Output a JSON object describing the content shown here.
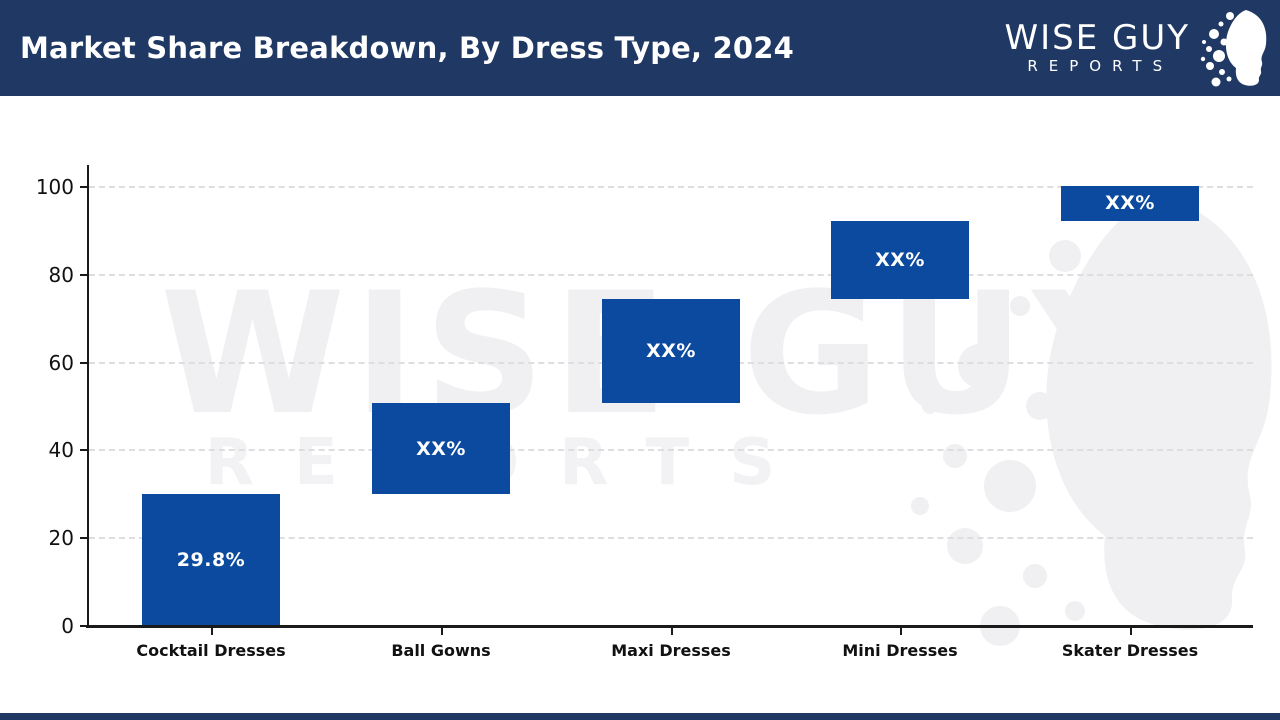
{
  "header": {
    "title": "Market Share Breakdown, By Dress Type, 2024",
    "bg_color": "#1f3864",
    "logo": {
      "line1": "WISE GUY",
      "line2": "REPORTS"
    }
  },
  "watermark": {
    "line1": "WISE GUY",
    "line2": "REPORTS"
  },
  "chart_data": {
    "type": "bar",
    "subtype": "waterfall",
    "title": "Market Share Breakdown, By Dress Type, 2024",
    "categories": [
      "Cocktail Dresses",
      "Ball Gowns",
      "Maxi Dresses",
      "Mini Dresses",
      "Skater Dresses"
    ],
    "bars": [
      {
        "category": "Cocktail Dresses",
        "start": 0,
        "end": 29.8,
        "value": 29.8,
        "label": "29.8%"
      },
      {
        "category": "Ball Gowns",
        "start": 29.8,
        "end": 50.6,
        "value": 20.8,
        "label": "XX%"
      },
      {
        "category": "Maxi Dresses",
        "start": 50.6,
        "end": 74.3,
        "value": 23.7,
        "label": "XX%"
      },
      {
        "category": "Mini Dresses",
        "start": 74.3,
        "end": 92.1,
        "value": 17.8,
        "label": "XX%"
      },
      {
        "category": "Skater Dresses",
        "start": 92.1,
        "end": 100,
        "value": 7.9,
        "label": "XX%"
      }
    ],
    "ylim": [
      0,
      104
    ],
    "yticks": [
      0,
      20,
      40,
      60,
      80,
      100
    ],
    "grid": "horizontal-dashed",
    "bar_color": "#0b4a9e",
    "bar_label_color": "#ffffff",
    "axis_color": "#1a1a1a",
    "legend": null
  }
}
